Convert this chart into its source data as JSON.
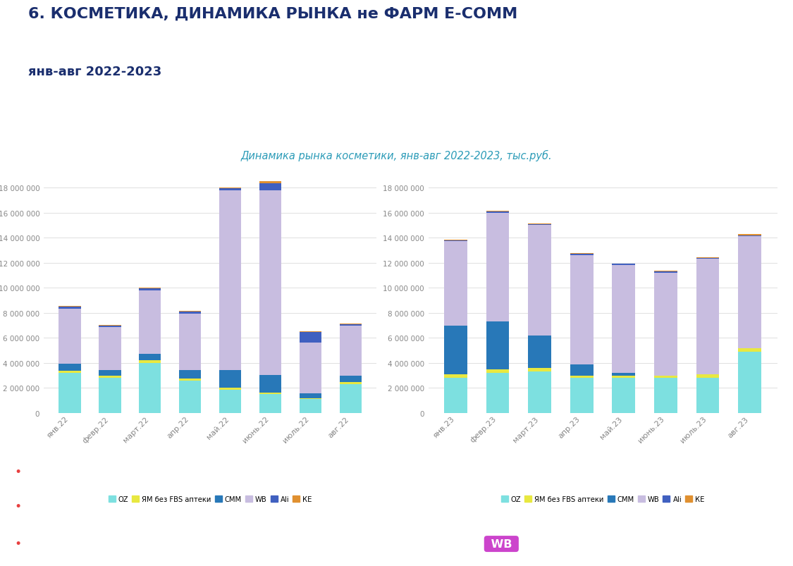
{
  "title_line1": "6. КОСМЕТИКА, ДИНАМИКА РЫНКА не ФАРМ Е-COMM",
  "title_line2": "янв-авг 2022-2023",
  "subtitle": "Динамика рынка косметики, янв-авг 2022-2023, тыс.руб.",
  "bg_color": "#ffffff",
  "categories_2022": [
    "янв.22",
    "февр.22",
    "март.22",
    "апр.22",
    "май.22",
    "июнь.22",
    "июль.22",
    "авг.22"
  ],
  "categories_2023": [
    "янв.23",
    "февр.23",
    "март.23",
    "апр.23",
    "май.23",
    "июнь.23",
    "июль.23",
    "авг.23"
  ],
  "series": [
    "OZ",
    "ЯМ без FBS аптеки",
    "СММ",
    "WB",
    "Ali",
    "КЕ"
  ],
  "colors": [
    "#7de0e0",
    "#e8e840",
    "#2878b8",
    "#c8bde0",
    "#4060c0",
    "#e09030"
  ],
  "data_2022_OZ": [
    3200000,
    2800000,
    4000000,
    2600000,
    1850000,
    1500000,
    1100000,
    2300000
  ],
  "data_2022_YAM": [
    150000,
    150000,
    200000,
    150000,
    150000,
    150000,
    100000,
    150000
  ],
  "data_2022_CMM": [
    600000,
    500000,
    500000,
    700000,
    1450000,
    1400000,
    350000,
    550000
  ],
  "data_2022_WB": [
    4400000,
    3400000,
    5100000,
    4500000,
    14350000,
    14700000,
    4050000,
    4000000
  ],
  "data_2022_Ali": [
    150000,
    150000,
    150000,
    150000,
    150000,
    600000,
    850000,
    100000
  ],
  "data_2022_KE": [
    50000,
    50000,
    50000,
    50000,
    50000,
    150000,
    100000,
    50000
  ],
  "data_2023_OZ": [
    2800000,
    3200000,
    3300000,
    2800000,
    2800000,
    2800000,
    2800000,
    4900000
  ],
  "data_2023_YAM": [
    300000,
    300000,
    300000,
    200000,
    200000,
    200000,
    300000,
    300000
  ],
  "data_2023_CMM": [
    3900000,
    3800000,
    2600000,
    900000,
    200000,
    0,
    0,
    0
  ],
  "data_2023_WB": [
    6700000,
    8700000,
    8800000,
    8700000,
    8600000,
    8200000,
    9200000,
    8900000
  ],
  "data_2023_Ali": [
    100000,
    100000,
    100000,
    100000,
    100000,
    100000,
    100000,
    100000
  ],
  "data_2023_KE": [
    50000,
    50000,
    50000,
    50000,
    50000,
    50000,
    50000,
    100000
  ],
  "ylim": [
    0,
    19000000
  ],
  "yticks": [
    0,
    2000000,
    4000000,
    6000000,
    8000000,
    10000000,
    12000000,
    14000000,
    16000000,
    18000000
  ],
  "title_color": "#1a2e6e",
  "subtitle_color": "#2d9cb8",
  "bottom_bg": "#4aabcc",
  "bottom_text_color": "#ffffff",
  "bullet_color": "#e84040",
  "wb_badge_color": "#cc44cc",
  "grid_color": "#e0e0e0",
  "tick_color": "#888888"
}
